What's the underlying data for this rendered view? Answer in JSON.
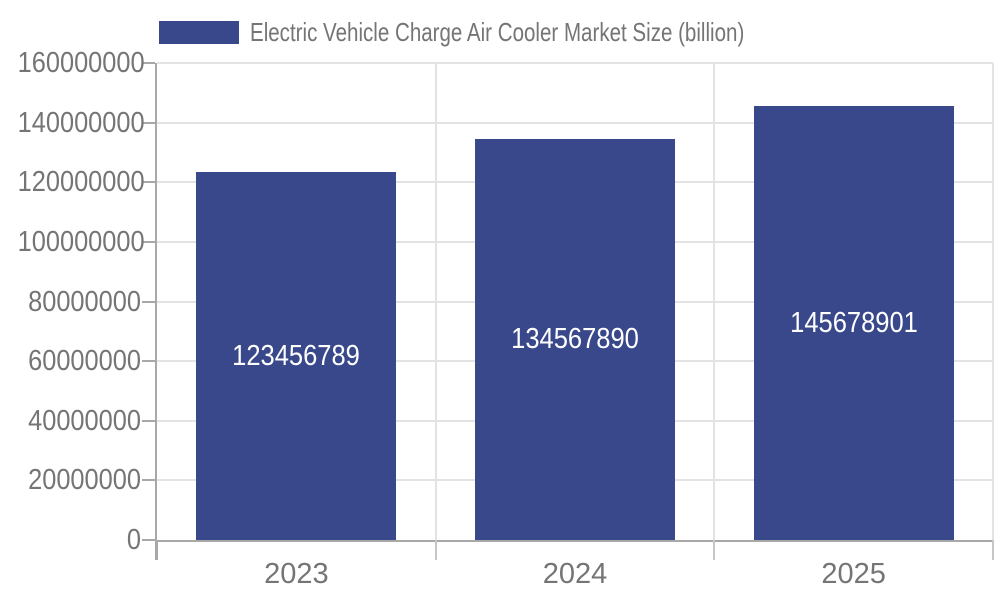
{
  "legend": {
    "series_label": "Electric Vehicle Charge Air Cooler Market Size (billion)"
  },
  "chart_data": {
    "type": "bar",
    "title": "Electric Vehicle Charge Air Cooler Market Size (billion)",
    "categories": [
      "2023",
      "2024",
      "2025"
    ],
    "values": [
      123456789,
      134567890,
      145678901
    ],
    "bar_labels": [
      "123456789",
      "134567890",
      "145678901"
    ],
    "xlabel": "",
    "ylabel": "",
    "ylim": [
      0,
      160000000
    ],
    "yticks": [
      0,
      20000000,
      40000000,
      60000000,
      80000000,
      100000000,
      120000000,
      140000000,
      160000000
    ],
    "grid": true,
    "legend_position": "top-left",
    "colors": {
      "bar": "#38488A",
      "bar_label": "#FFFFFF",
      "axis_line": "#A8A8A8",
      "boundary_tick": "#C6C6C6",
      "gridline": "#E3E3E3",
      "tick_label": "#757575",
      "legend_text": "#757575",
      "background": "#FFFFFF"
    }
  }
}
